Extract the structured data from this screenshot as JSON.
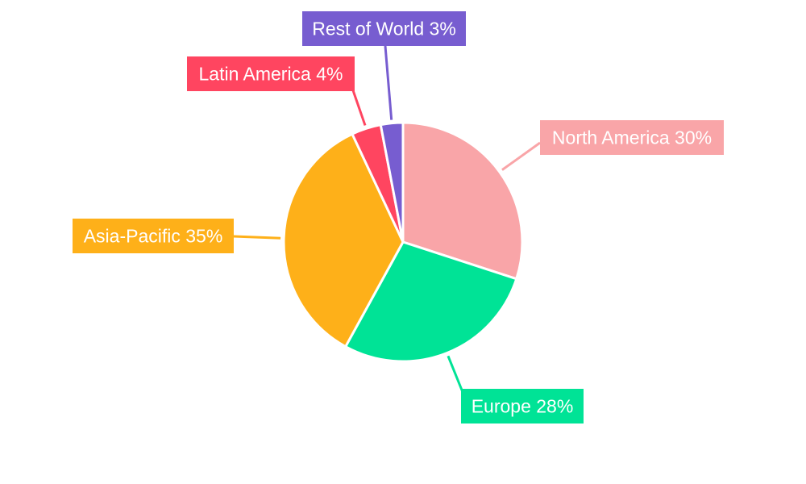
{
  "chart_data": {
    "type": "pie",
    "title": "",
    "series": [
      {
        "name": "North America",
        "value": 30,
        "label": "North America 30%",
        "color": "#F9A5A8"
      },
      {
        "name": "Europe",
        "value": 28,
        "label": "Europe 28%",
        "color": "#00E396"
      },
      {
        "name": "Asia-Pacific",
        "value": 35,
        "label": "Asia-Pacific 35%",
        "color": "#FEB019"
      },
      {
        "name": "Latin America",
        "value": 4,
        "label": "Latin America 4%",
        "color": "#FF4560"
      },
      {
        "name": "Rest of World",
        "value": 3,
        "label": "Rest of World 3%",
        "color": "#775DD0"
      }
    ],
    "start_angle_deg": 0,
    "direction": "clockwise",
    "legend": "none",
    "labels": "outside-callout"
  }
}
